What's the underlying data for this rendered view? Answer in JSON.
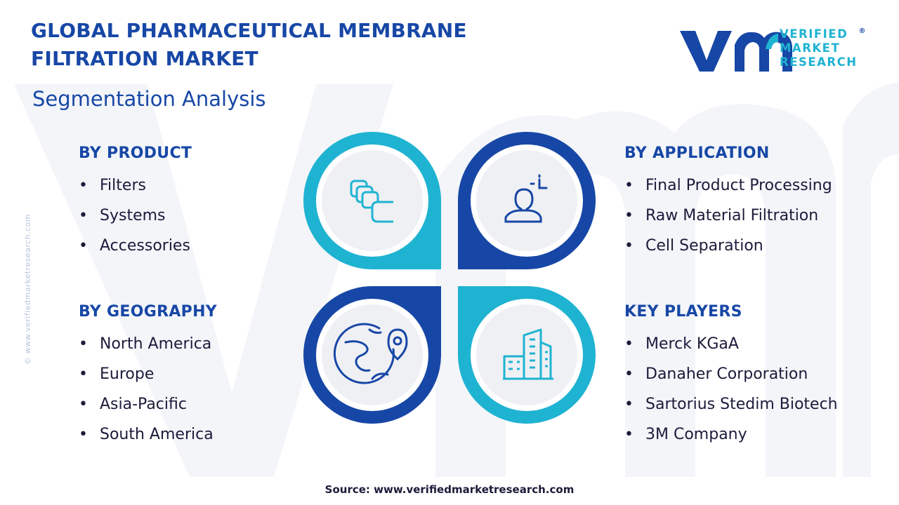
{
  "header": {
    "title_line1": "GLOBAL PHARMACEUTICAL MEMBRANE",
    "title_line2": "FILTRATION MARKET",
    "subtitle": "Segmentation Analysis"
  },
  "logo": {
    "line1": "VERIFIED",
    "line2": "MARKET",
    "line3": "RESEARCH",
    "registered": "®"
  },
  "watermark_text": "© www.verifiedmarketresearch.com",
  "segments": {
    "product": {
      "heading": "BY PRODUCT",
      "items": [
        "Filters",
        "Systems",
        "Accessories"
      ]
    },
    "application": {
      "heading": "BY APPLICATION",
      "items": [
        "Final Product Processing",
        "Raw Material Filtration",
        "Cell Separation"
      ]
    },
    "geography": {
      "heading": "BY GEOGRAPHY",
      "items": [
        "North America",
        "Europe",
        "Asia-Pacific",
        "South America"
      ]
    },
    "players": {
      "heading": "KEY PLAYERS",
      "items": [
        "Merck KGaA",
        "Danaher Corporation",
        "Sartorius Stedim Biotech",
        "3M Company"
      ]
    }
  },
  "icons": {
    "product": "filter-cartridges-icon",
    "application": "person-process-icon",
    "geography": "globe-location-icon",
    "players": "city-buildings-icon"
  },
  "colors": {
    "navy": "#1747a6",
    "cyan": "#1fb3d2",
    "text": "#1b1b3a",
    "circle_fill": "#eff0f4"
  },
  "source": "Source: www.verifiedmarketresearch.com"
}
